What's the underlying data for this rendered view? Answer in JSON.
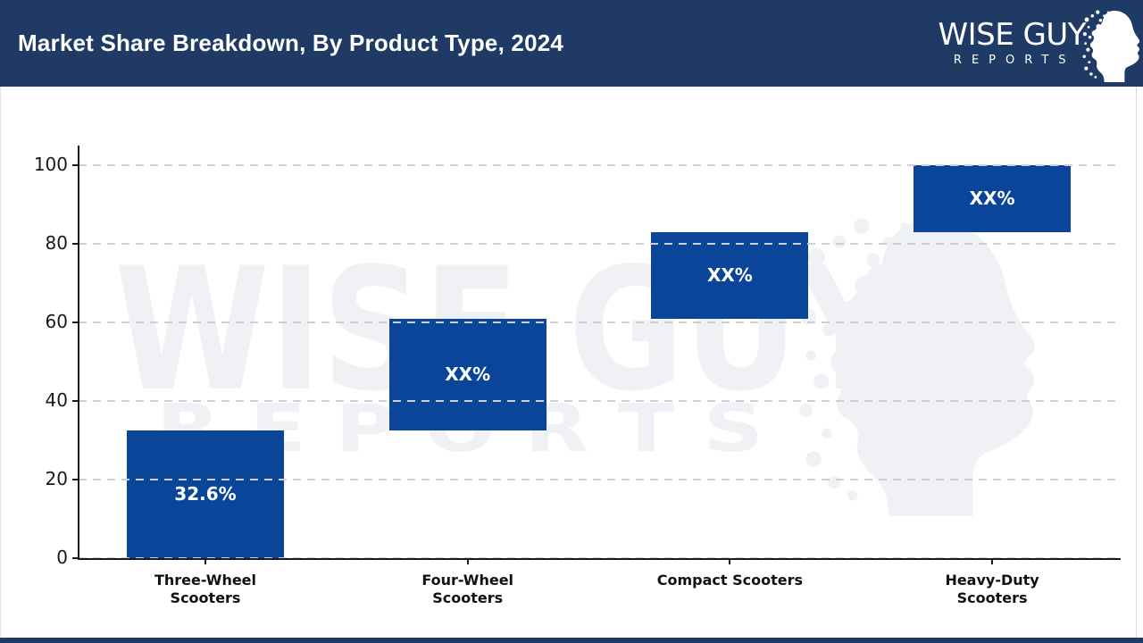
{
  "header": {
    "title": "Market Share Breakdown, By Product Type, 2024",
    "logo_line1": "WISE GUY",
    "logo_line2": "REPORTS"
  },
  "watermark": {
    "line1": "WISE GUY",
    "line2": "R E P O R T S"
  },
  "colors": {
    "header_bg": "#203a66",
    "footer_bg": "#203a66",
    "bar_fill": "#0b459a",
    "bar_label": "#ffffff",
    "gridline": "#ccd0d4",
    "axis": "#1a1a1a",
    "watermark": "#eff1f4"
  },
  "chart_data": {
    "type": "bar",
    "subtype": "waterfall",
    "title": "Market Share Breakdown, By Product Type, 2024",
    "xlabel": "",
    "ylabel": "",
    "ylim": [
      0,
      105
    ],
    "y_ticks": [
      0,
      20,
      40,
      60,
      80,
      100
    ],
    "grid": "horizontal-dashed",
    "legend": "none",
    "categories": [
      "Three-Wheel Scooters",
      "Four-Wheel Scooters",
      "Compact Scooters",
      "Heavy-Duty Scooters"
    ],
    "segments": [
      {
        "category": "Three-Wheel Scooters",
        "category_lines": [
          "Three-Wheel",
          "Scooters"
        ],
        "start": 0,
        "end": 32.6,
        "value_label": "32.6%"
      },
      {
        "category": "Four-Wheel Scooters",
        "category_lines": [
          "Four-Wheel",
          "Scooters"
        ],
        "start": 32.6,
        "end": 61,
        "value_label": "XX%"
      },
      {
        "category": "Compact Scooters",
        "category_lines": [
          "Compact Scooters"
        ],
        "start": 61,
        "end": 83,
        "value_label": "XX%"
      },
      {
        "category": "Heavy-Duty Scooters",
        "category_lines": [
          "Heavy-Duty",
          "Scooters"
        ],
        "start": 83,
        "end": 100,
        "value_label": "XX%"
      }
    ]
  }
}
